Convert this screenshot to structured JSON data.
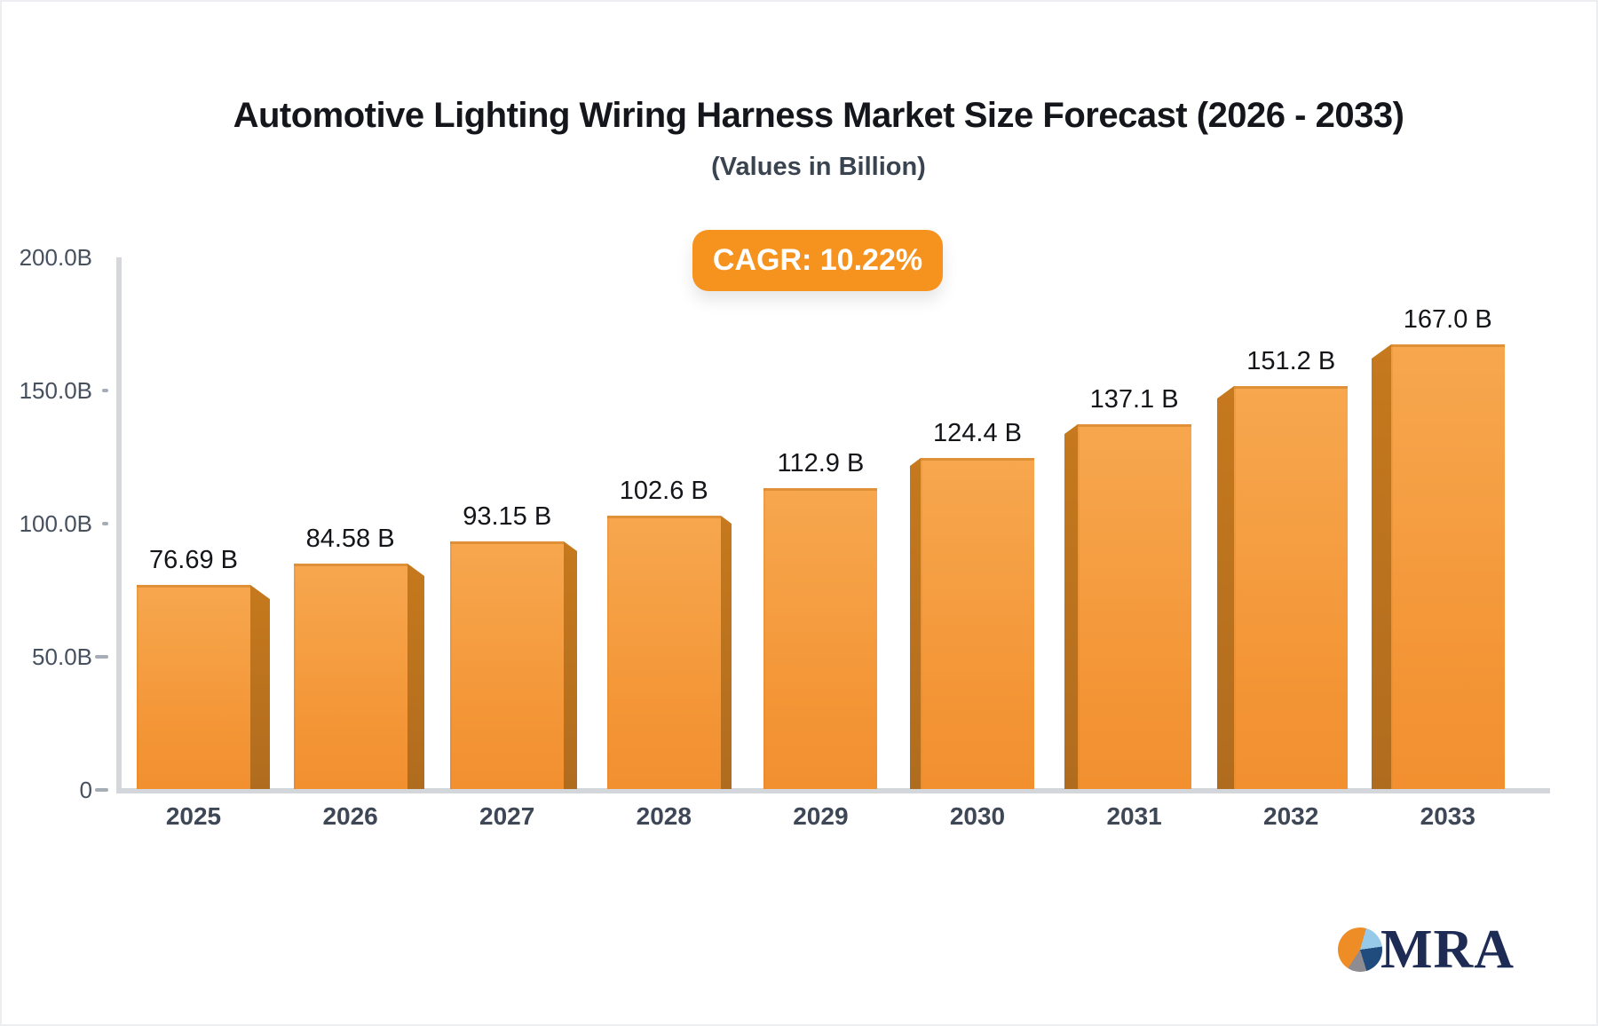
{
  "page": {
    "title": "Automotive Lighting Wiring Harness Market Size Forecast (2026 - 2033)",
    "subtitle": "(Values in Billion)",
    "cagr_label": "CAGR: 10.22%"
  },
  "chart_data": {
    "type": "bar",
    "title": "Automotive Lighting Wiring Harness Market Size Forecast (2026 - 2033)",
    "subtitle": "(Values in Billion)",
    "annotation": "CAGR: 10.22%",
    "categories": [
      "2025",
      "2026",
      "2027",
      "2028",
      "2029",
      "2030",
      "2031",
      "2032",
      "2033"
    ],
    "values": [
      76.69,
      84.58,
      93.15,
      102.6,
      112.9,
      124.4,
      137.1,
      151.2,
      167.0
    ],
    "value_labels": [
      "76.69 B",
      "84.58 B",
      "93.15 B",
      "102.6 B",
      "112.9 B",
      "124.4 B",
      "137.1 B",
      "151.2 B",
      "167.0 B"
    ],
    "ylabel": "",
    "xlabel": "",
    "ylim": [
      0,
      200
    ],
    "y_ticks": [
      {
        "value": 0,
        "label": "0"
      },
      {
        "value": 50,
        "label": "50.0B"
      },
      {
        "value": 100,
        "label": "100.0B"
      },
      {
        "value": 150,
        "label": "150.0B"
      },
      {
        "value": 200,
        "label": "200.0B"
      }
    ],
    "grid": false,
    "legend_position": "none",
    "bar_style": "3d",
    "colors": {
      "bar_face_top": "#f7a74f",
      "bar_face_bottom": "#f29030",
      "bar_side": "#be731c",
      "axis": "#d5d7db",
      "badge": "#f6921e",
      "tick_text": "#47505f",
      "value_text": "#131519"
    }
  },
  "logo": {
    "text": "MRA",
    "pie_colors": [
      "#ee8d26",
      "#97cae9",
      "#1f4c7c",
      "#8e8c90"
    ]
  }
}
